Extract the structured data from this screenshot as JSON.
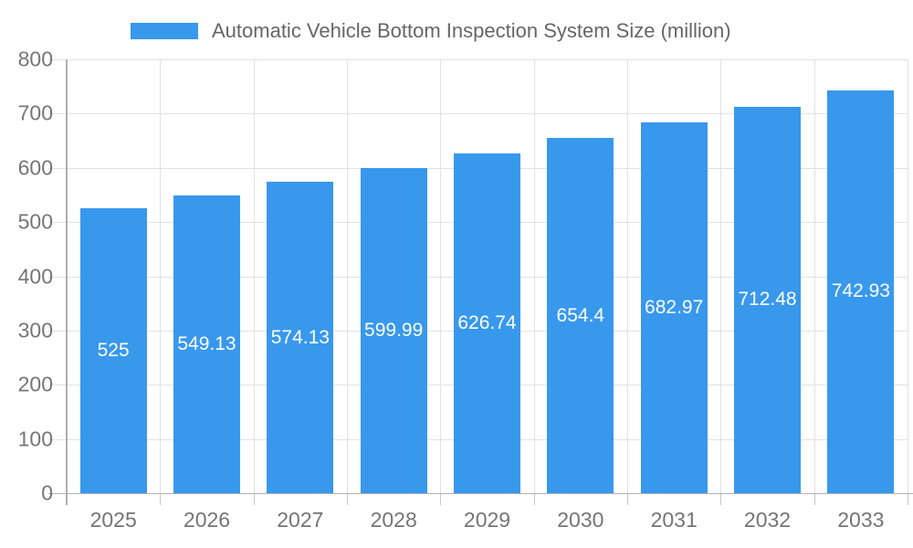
{
  "chart_data": {
    "type": "bar",
    "title": "Automatic Vehicle Bottom Inspection System Size (million)",
    "categories": [
      "2025",
      "2026",
      "2027",
      "2028",
      "2029",
      "2030",
      "2031",
      "2032",
      "2033"
    ],
    "values": [
      525,
      549.13,
      574.13,
      599.99,
      626.74,
      654.4,
      682.97,
      712.48,
      742.93
    ],
    "value_labels": [
      "525",
      "549.13",
      "574.13",
      "599.99",
      "626.74",
      "654.4",
      "682.97",
      "712.48",
      "742.93"
    ],
    "series_name": "Automatic Vehicle Bottom Inspection System Size (million)",
    "xlabel": "",
    "ylabel": "",
    "ylim": [
      0,
      800
    ],
    "yticks": [
      0,
      100,
      200,
      300,
      400,
      500,
      600,
      700,
      800
    ],
    "grid": true,
    "legend_position": "top",
    "colors": {
      "bar": "#3898EC",
      "value_label": "#FFFFFF",
      "axis_label": "#757575",
      "legend_text": "#666666",
      "gridline": "#E2E2E2",
      "boundary_line": "#E2E2E2",
      "axis_line": "#AFAFAF",
      "baseline": "#B2B2B2",
      "tick": "#C6C6C6",
      "background": "#FFFFFF"
    }
  }
}
